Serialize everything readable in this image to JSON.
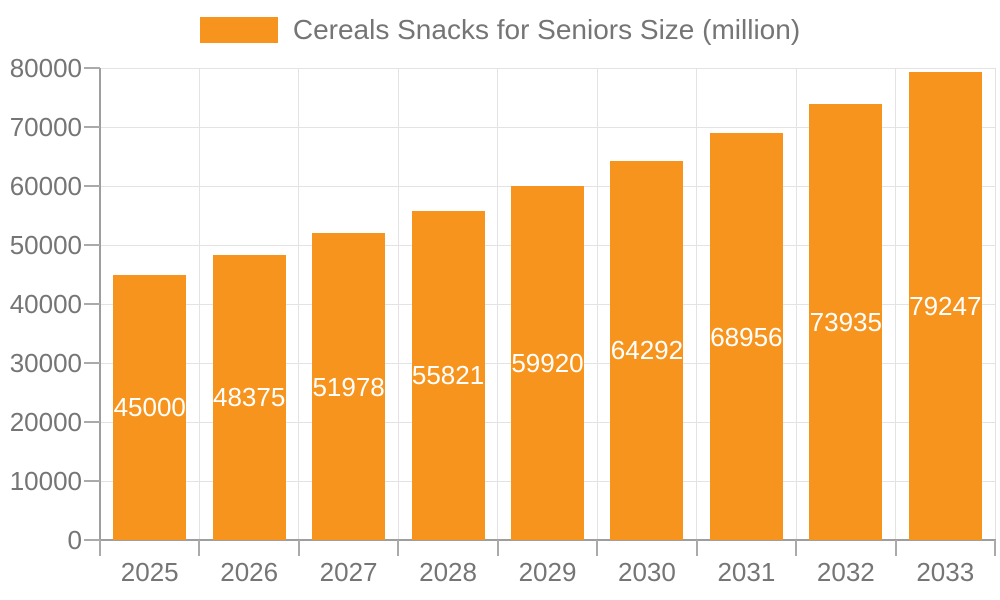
{
  "legend": {
    "label": "Cereals Snacks for Seniors Size (million)"
  },
  "chart_data": {
    "type": "bar",
    "title": "Cereals Snacks for Seniors Size (million)",
    "series_name": "Cereals Snacks for Seniors Size (million)",
    "categories": [
      "2025",
      "2026",
      "2027",
      "2028",
      "2029",
      "2030",
      "2031",
      "2032",
      "2033"
    ],
    "values": [
      45000,
      48375,
      51978,
      55821,
      59920,
      64292,
      68956,
      73935,
      79247
    ],
    "xlabel": "",
    "ylabel": "",
    "ylim": [
      0,
      80000
    ],
    "ytick_step": 10000,
    "ytick_labels": [
      "0",
      "10000",
      "20000",
      "30000",
      "40000",
      "50000",
      "60000",
      "70000",
      "80000"
    ],
    "grid": true,
    "legend_position": "top-center",
    "bar_color": "#F7941E",
    "value_label_color": "#FFFFFF",
    "axis_text_color": "#757575",
    "axis_line_color": "#9E9E9E",
    "grid_color": "#E3E3E3"
  }
}
